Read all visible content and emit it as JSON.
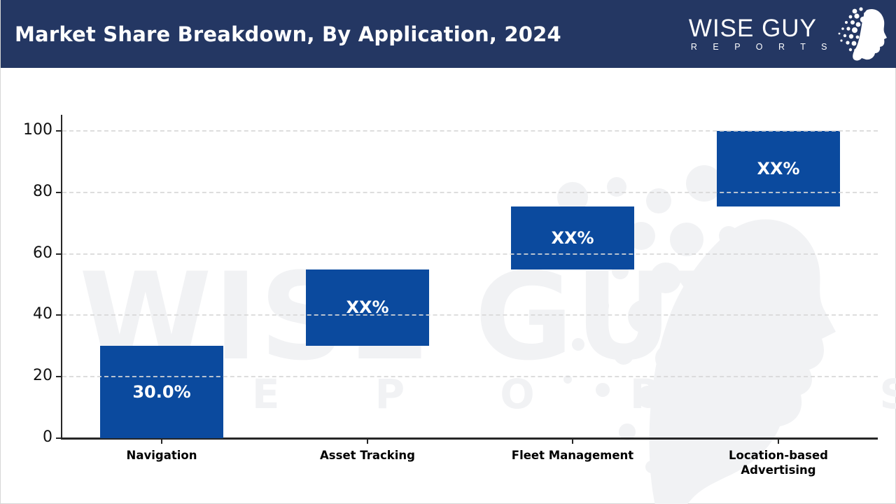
{
  "header": {
    "title": "Market Share Breakdown, By Application, 2024",
    "bg_color": "#243763",
    "logo": {
      "line1": "WISE GUY",
      "line2": "R E P O R T S",
      "icon": "dotted-head-icon"
    }
  },
  "watermark": {
    "line1": "WISE GUY",
    "line2": "R E P O R T S",
    "icon": "dotted-head-watermark",
    "color": "#f1f2f4"
  },
  "chart_data": {
    "type": "bar",
    "subtype": "waterfall",
    "title": "Market Share Breakdown, By Application, 2024",
    "categories": [
      "Navigation",
      "Asset Tracking",
      "Fleet Management",
      "Location-based Advertising"
    ],
    "series": [
      {
        "name": "Market share (%)",
        "segments": [
          {
            "category": "Navigation",
            "start": 0,
            "end": 30,
            "label": "30.0%"
          },
          {
            "category": "Asset Tracking",
            "start": 30,
            "end": 55,
            "label": "XX%"
          },
          {
            "category": "Fleet Management",
            "start": 55,
            "end": 75.5,
            "label": "XX%"
          },
          {
            "category": "Location-based Advertising",
            "start": 75.5,
            "end": 100,
            "label": "XX%"
          }
        ]
      }
    ],
    "xlabel": "",
    "ylabel": "",
    "ylim": [
      0,
      100
    ],
    "yticks": [
      0,
      20,
      40,
      60,
      80,
      100
    ],
    "grid": {
      "horizontal": true,
      "style": "dashed"
    },
    "legend": "none",
    "bar_color": "#0b4a9e",
    "bar_label_color": "#ffffff",
    "axis_color": "#262626",
    "grid_color": "#d7d7d7"
  }
}
